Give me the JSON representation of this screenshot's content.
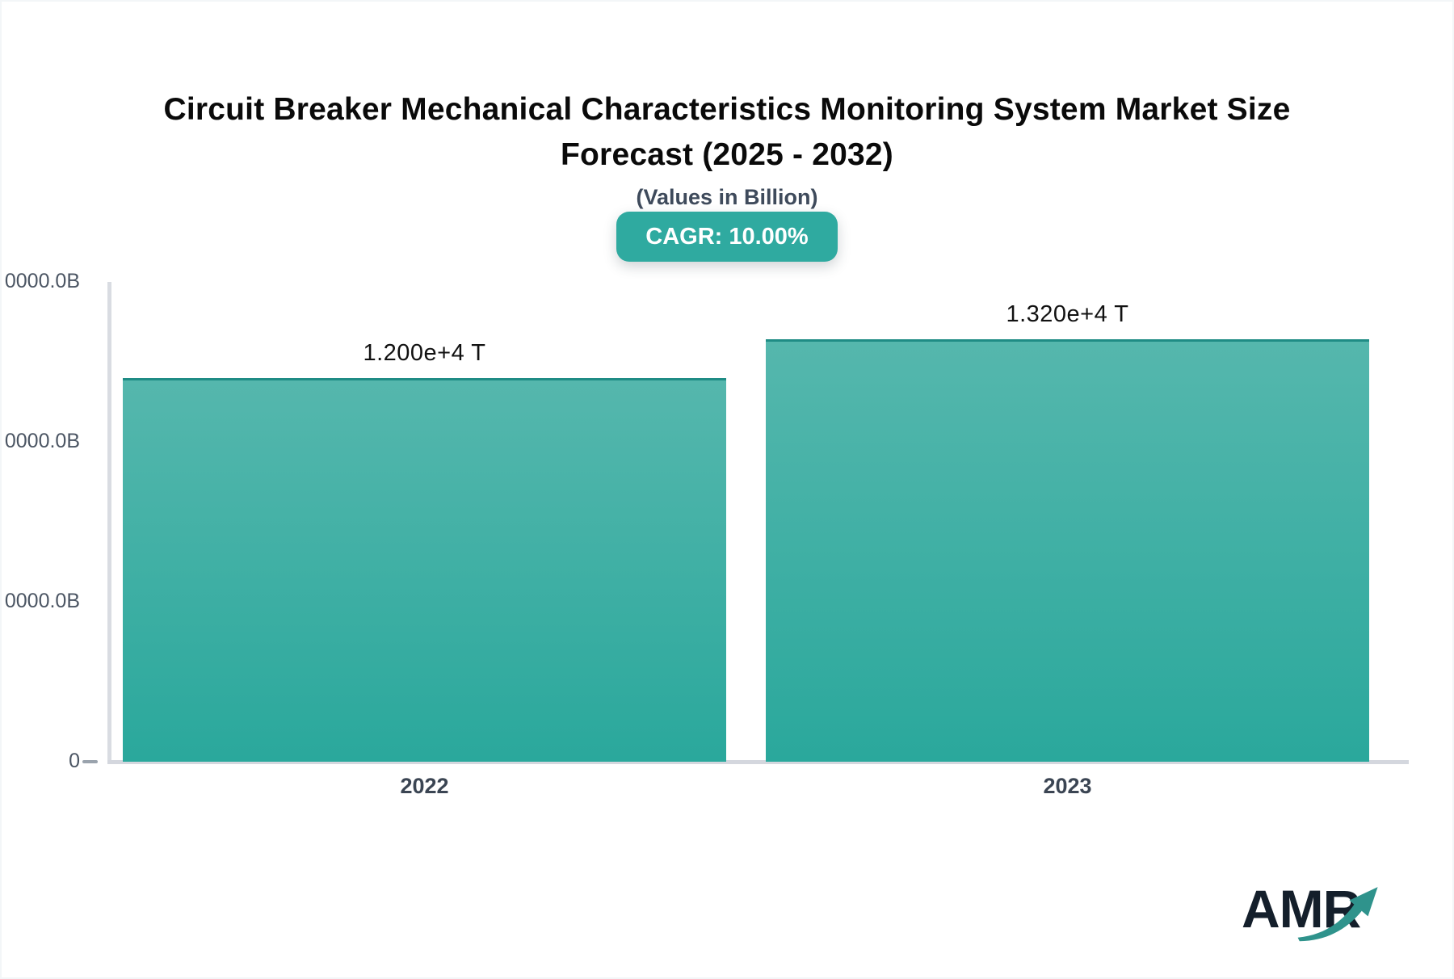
{
  "title": {
    "line1": "Circuit Breaker Mechanical Characteristics Monitoring System Market Size",
    "line2": "Forecast (2025 - 2032)"
  },
  "subtitle": "(Values in Billion)",
  "badge": {
    "label": "CAGR: 10.00%"
  },
  "logo": {
    "text": "AMR"
  },
  "chart_data": {
    "type": "bar",
    "title": "Circuit Breaker Mechanical Characteristics Monitoring System Market Size Forecast (2025 - 2032)",
    "subtitle": "(Values in Billion)",
    "cagr": "10.00%",
    "categories": [
      "2022",
      "2023"
    ],
    "values": [
      12000,
      13200
    ],
    "value_labels": [
      "1.200e+4 T",
      "1.320e+4 T"
    ],
    "xlabel": "",
    "ylabel": "",
    "ylim": [
      0,
      15000
    ],
    "y_ticks": [
      {
        "value": 15000,
        "label": "0000.0B"
      },
      {
        "value": 10000,
        "label": "0000.0B"
      },
      {
        "value": 5000,
        "label": "0000.0B"
      },
      {
        "value": 0,
        "label": "0"
      }
    ],
    "grid": false,
    "legend": false
  },
  "colors": {
    "badge_bg": "#2faaa0",
    "bar_top": "#55b7ad",
    "bar_bottom": "#2aa89c",
    "bar_border": "#1f8c85",
    "axis_line": "#d9dce2",
    "tick_text": "#4b5563",
    "x_label_text": "#3b4553",
    "title_text": "#0a0a0a",
    "subtitle_text": "#3e4a5b",
    "logo_text": "#141f2b",
    "logo_arrow": "#2f938c"
  }
}
